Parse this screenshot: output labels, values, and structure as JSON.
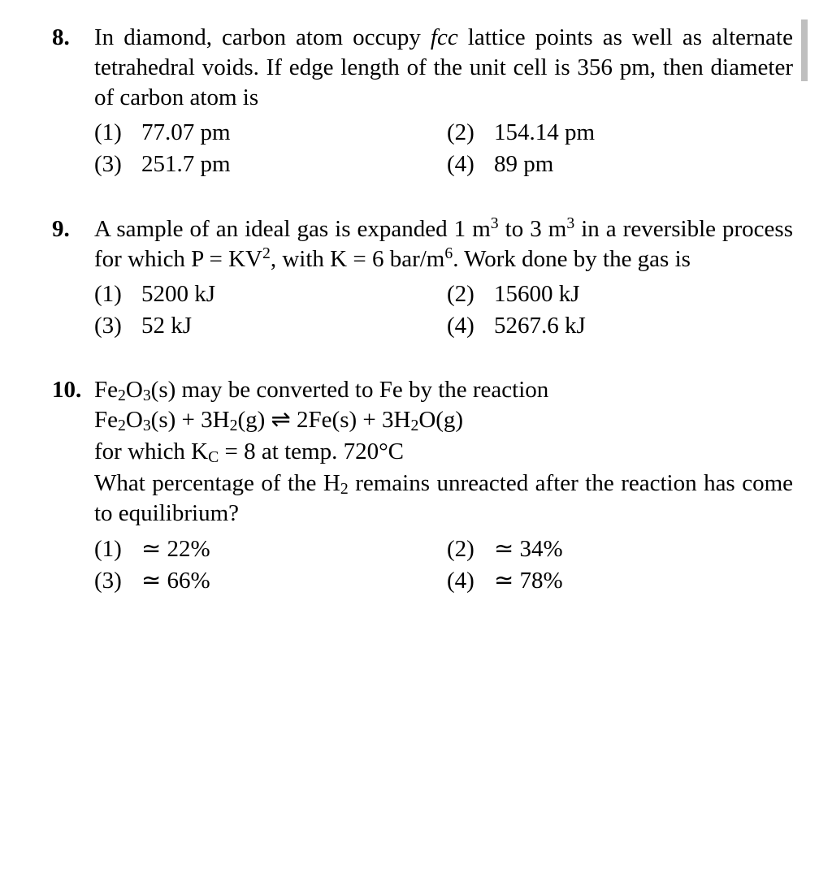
{
  "questions": [
    {
      "number": "8.",
      "stem_html": "In diamond, carbon atom occupy <span class=\"italic\">fcc</span> lattice points as well as alternate tetrahedral voids. If edge length of the unit cell is 356 pm, then diameter of carbon atom is",
      "options": [
        {
          "label": "(1)",
          "text": "77.07 pm"
        },
        {
          "label": "(2)",
          "text": "154.14 pm"
        },
        {
          "label": "(3)",
          "text": "251.7 pm"
        },
        {
          "label": "(4)",
          "text": "89 pm"
        }
      ]
    },
    {
      "number": "9.",
      "stem_html": "A sample of an ideal gas is expanded 1 m<sup>3</sup> to 3 m<sup>3</sup> in a reversible process for which P = KV<sup>2</sup>, with K = 6 bar/m<sup>6</sup>. Work done by the gas is",
      "options": [
        {
          "label": "(1)",
          "text": "5200 kJ"
        },
        {
          "label": "(2)",
          "text": "15600 kJ"
        },
        {
          "label": "(3)",
          "text": "52 kJ"
        },
        {
          "label": "(4)",
          "text": "5267.6 kJ"
        }
      ]
    },
    {
      "number": "10.",
      "stem_html": "Fe<sub>2</sub>O<sub>3</sub>(s) may be converted to Fe by the reaction<div class=\"eqline\">Fe<sub>2</sub>O<sub>3</sub>(s) + 3H<sub>2</sub>(g) &#8652; 2Fe(s) + 3H<sub>2</sub>O(g)</div><div class=\"eqline\">for which K<sub>C</sub> = 8 at temp. 720&deg;C</div>What percentage of the H<sub>2</sub> remains unreacted after the reaction has come to equilibrium?",
      "options": [
        {
          "label": "(1)",
          "text": "≃ 22%"
        },
        {
          "label": "(2)",
          "text": "≃ 34%"
        },
        {
          "label": "(3)",
          "text": "≃ 66%"
        },
        {
          "label": "(4)",
          "text": "≃ 78%"
        }
      ]
    }
  ]
}
